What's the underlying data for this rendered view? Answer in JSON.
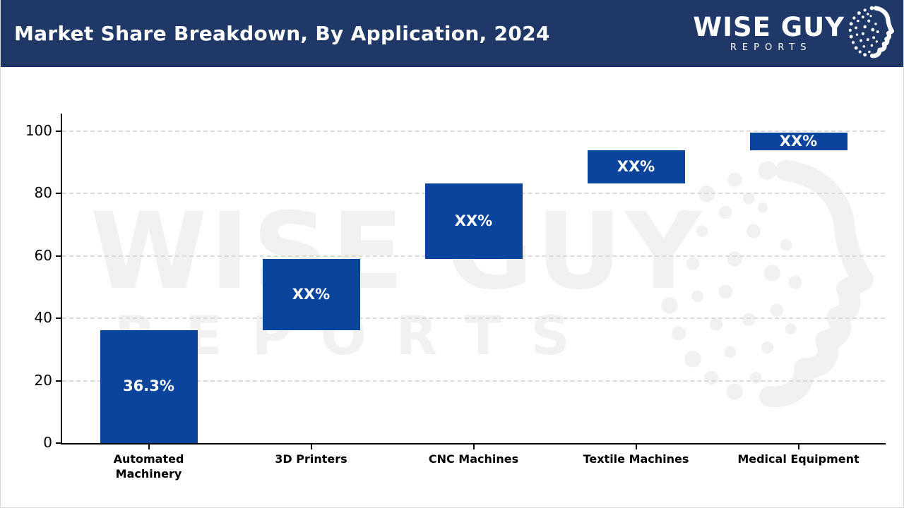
{
  "header": {
    "title": "Market Share Breakdown, By Application, 2024"
  },
  "logo": {
    "line1": "WISE GUY",
    "line2": "REPORTS",
    "head_icon": "dotted-head-profile"
  },
  "watermark": {
    "line1": "WISE GUY",
    "line2": "REPORTS",
    "head_icon": "dotted-head-profile"
  },
  "colors": {
    "header_bg": "#1f3868",
    "bar_blue": "#0a449c",
    "gridline": "#dbdbdb",
    "watermark": "#f1f1f1",
    "axis_text": "#000000",
    "bar_label_text": "#ffffff",
    "frame_border": "#d9d9d9"
  },
  "chart_data": {
    "type": "bar",
    "subtype": "waterfall",
    "title": "Market Share Breakdown, By Application, 2024",
    "categories": [
      "Automated\nMachinery",
      "3D Printers",
      "CNC Machines",
      "Textile Machines",
      "Medical Equipment"
    ],
    "segments": [
      {
        "category": "Automated Machinery",
        "start": 0,
        "end": 36.3,
        "label": "36.3%"
      },
      {
        "category": "3D Printers",
        "start": 36.3,
        "end": 59.0,
        "label": "XX%"
      },
      {
        "category": "CNC Machines",
        "start": 59.0,
        "end": 83.3,
        "label": "XX%"
      },
      {
        "category": "Textile Machines",
        "start": 83.3,
        "end": 93.9,
        "label": "XX%"
      },
      {
        "category": "Medical Equipment",
        "start": 93.9,
        "end": 99.5,
        "label": "XX%"
      }
    ],
    "yticks": [
      0,
      20,
      40,
      60,
      80,
      100
    ],
    "ylim": [
      0,
      105.7
    ],
    "xlabel": "",
    "ylabel": "",
    "grid": "horizontal-dashed",
    "legend": "none",
    "bar_color": "#0a449c"
  }
}
